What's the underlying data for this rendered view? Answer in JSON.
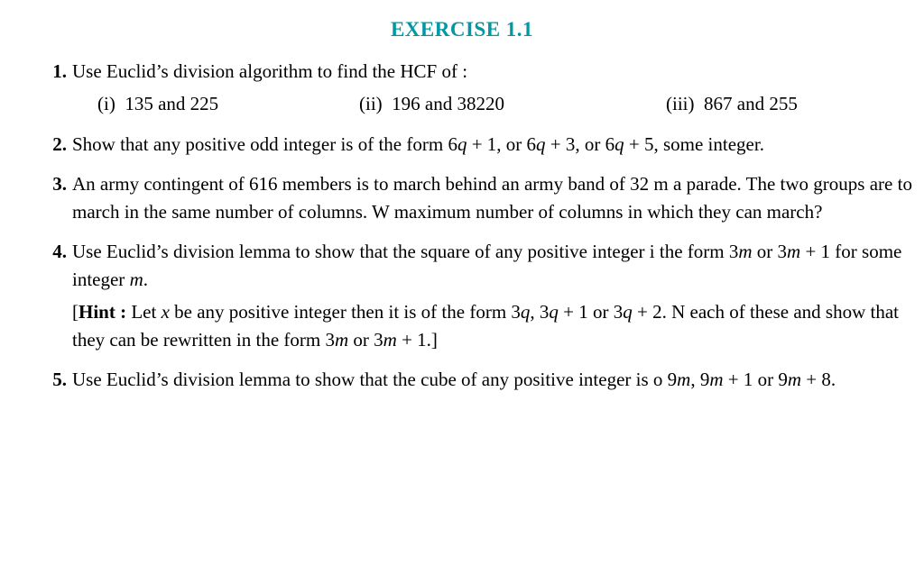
{
  "title": "EXERCISE 1.1",
  "colors": {
    "title": "#0098a3",
    "text": "#000000",
    "background": "#ffffff"
  },
  "typography": {
    "family": "Times New Roman",
    "title_fontsize": 23,
    "body_fontsize": 21,
    "line_height": 1.45
  },
  "problems": [
    {
      "number": "1.",
      "text": "Use Euclid’s division algorithm to find the HCF of :",
      "subparts": [
        {
          "label": "(i)",
          "text": "135 and 225"
        },
        {
          "label": "(ii)",
          "text": "196 and 38220"
        },
        {
          "label": "(iii)",
          "text": "867 and 255"
        }
      ]
    },
    {
      "number": "2.",
      "text_pre": "Show that any positive odd integer is of the form ",
      "expr1": "6q + 1",
      "mid1": ", or ",
      "expr2": "6q + 3",
      "mid2": ", or ",
      "expr3": "6q + 5",
      "text_post": ", some integer."
    },
    {
      "number": "3.",
      "text": "An army contingent of 616 members is to march behind an army band of 32 m a parade. The two groups are to march in the same number of columns. W maximum number of columns in which they can march?"
    },
    {
      "number": "4.",
      "text_pre": "Use Euclid’s division lemma to show that the square of any positive integer i the form ",
      "expr1": "3m",
      "mid1": " or ",
      "expr2": "3m + 1",
      "mid2": " for some integer ",
      "expr3": "m",
      "text_post": ".",
      "hint_label": "Hint :",
      "hint_pre": " Let ",
      "hint_x": "x",
      "hint_mid1": " be any positive integer then it is of the form ",
      "hint_e1": "3q",
      "hint_c1": ", ",
      "hint_e2": "3q + 1",
      "hint_c2": " or ",
      "hint_e3": "3q + 2",
      "hint_tail1": ". N each of these and show that they can be rewritten in the form ",
      "hint_e4": "3m",
      "hint_c3": " or ",
      "hint_e5": "3m + 1",
      "hint_tail2": ".]"
    },
    {
      "number": "5.",
      "text_pre": "Use Euclid’s division lemma to show that the cube of any positive integer is o ",
      "expr1": "9m",
      "mid1": ", ",
      "expr2": "9m + 1",
      "mid2": " or ",
      "expr3": "9m + 8",
      "text_post": "."
    }
  ]
}
